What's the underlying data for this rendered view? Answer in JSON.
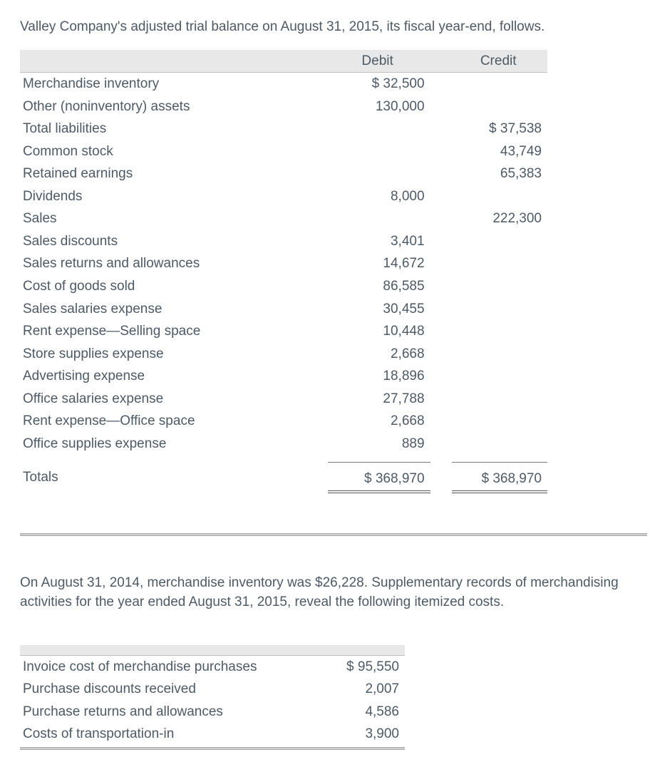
{
  "intro1": "Valley Company's adjusted trial balance on August 31, 2015, its fiscal year-end, follows.",
  "colDebit": "Debit",
  "colCredit": "Credit",
  "rows": [
    {
      "label": "Merchandise inventory",
      "debit": "$   32,500",
      "credit": ""
    },
    {
      "label": "Other (noninventory) assets",
      "debit": "130,000",
      "credit": ""
    },
    {
      "label": "Total liabilities",
      "debit": "",
      "credit": "$   37,538"
    },
    {
      "label": "Common stock",
      "debit": "",
      "credit": "43,749"
    },
    {
      "label": "Retained earnings",
      "debit": "",
      "credit": "65,383"
    },
    {
      "label": "Dividends",
      "debit": "8,000",
      "credit": ""
    },
    {
      "label": "Sales",
      "debit": "",
      "credit": "222,300"
    },
    {
      "label": "Sales discounts",
      "debit": "3,401",
      "credit": ""
    },
    {
      "label": "Sales returns and allowances",
      "debit": "14,672",
      "credit": ""
    },
    {
      "label": "Cost of goods sold",
      "debit": "86,585",
      "credit": ""
    },
    {
      "label": "Sales salaries expense",
      "debit": "30,455",
      "credit": ""
    },
    {
      "label": "Rent expense—Selling space",
      "debit": "10,448",
      "credit": ""
    },
    {
      "label": "Store supplies expense",
      "debit": "2,668",
      "credit": ""
    },
    {
      "label": "Advertising expense",
      "debit": "18,896",
      "credit": ""
    },
    {
      "label": "Office salaries expense",
      "debit": "27,788",
      "credit": ""
    },
    {
      "label": "Rent expense—Office space",
      "debit": "2,668",
      "credit": ""
    },
    {
      "label": "Office supplies expense",
      "debit": "889",
      "credit": ""
    }
  ],
  "totalsLabel": "Totals",
  "totalDebit": "$ 368,970",
  "totalCredit": "$ 368,970",
  "intro2": "On August 31, 2014, merchandise inventory was $26,228. Supplementary records of merchandising activities for the year ended August 31, 2015, reveal the following itemized costs.",
  "supp": [
    {
      "label": "Invoice cost of merchandise purchases",
      "amount": "$  95,550"
    },
    {
      "label": "Purchase discounts received",
      "amount": "2,007"
    },
    {
      "label": "Purchase returns and allowances",
      "amount": "4,586"
    },
    {
      "label": "Costs of transportation-in",
      "amount": "3,900"
    }
  ]
}
